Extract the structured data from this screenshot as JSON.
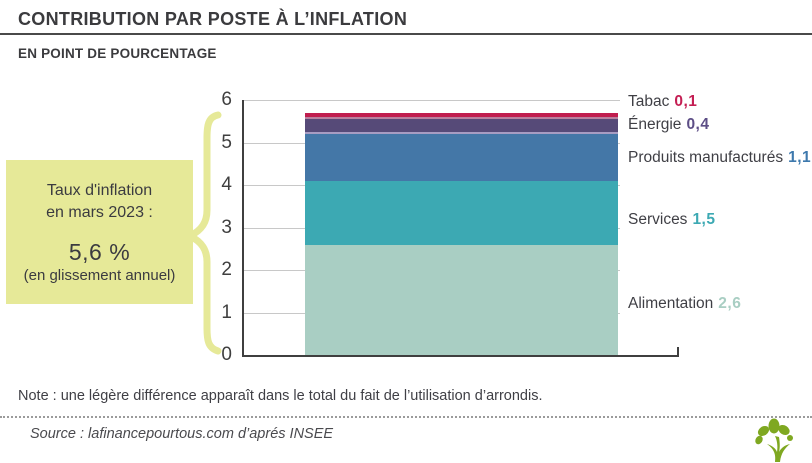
{
  "header": {
    "title": "CONTRIBUTION PAR POSTE À L’INFLATION",
    "subtitle": "EN POINT DE POURCENTAGE"
  },
  "info_box": {
    "line1": "Taux d'inflation",
    "line2": "en mars 2023 :",
    "rate": "5,6 %",
    "line4": "(en glissement annuel)"
  },
  "chart_data": {
    "type": "bar",
    "stacked": true,
    "title": "Contribution par poste à l'inflation",
    "unit_label": "En point de pourcentage",
    "ylim": [
      0,
      6
    ],
    "yticks": [
      0,
      1,
      2,
      3,
      4,
      5,
      6
    ],
    "grid": true,
    "legend_position": "right",
    "series": [
      {
        "name": "Alimentation",
        "value": 2.6,
        "display": "2,6",
        "color": "#a9cec3",
        "value_color": "#a9cec3"
      },
      {
        "name": "Services",
        "value": 1.5,
        "display": "1,5",
        "color": "#3ca9b3",
        "value_color": "#3ca9b3"
      },
      {
        "name": "Produits manufacturés",
        "value": 1.1,
        "display": "1,1",
        "color": "#4477a7",
        "value_color": "#3e79ad"
      },
      {
        "name": "Énergie",
        "value": 0.4,
        "display": "0,4",
        "color": "#564a78",
        "value_color": "#5d4e86"
      },
      {
        "name": "Tabac",
        "value": 0.1,
        "display": "0,1",
        "color": "#c01d4e",
        "value_color": "#c41e53"
      }
    ],
    "stack_total": 5.7
  },
  "note": "Note : une légère différence apparaît dans le total du fait de l’utilisation d’arrondis.",
  "source": "Source : lafinancepourtous.com d’aprés INSEE",
  "logo": {
    "name": "lafinancepourtous-tree-logo",
    "color": "#7fa821"
  },
  "palette": {
    "info_box_bg": "#e6e998",
    "brace": "#e6e998",
    "axis": "#3f3f3f",
    "gridline": "#c8c8c8",
    "text": "#3f3f45",
    "title_rule": "#4a4a4a"
  }
}
